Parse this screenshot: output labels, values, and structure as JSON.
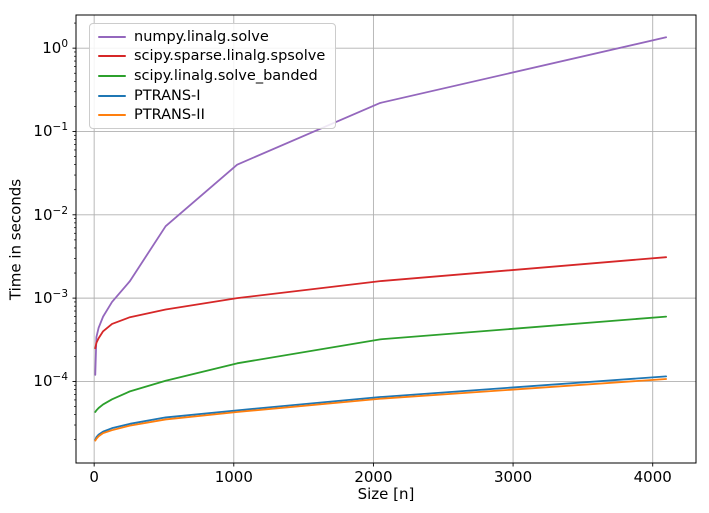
{
  "figure": {
    "background": "#ffffff"
  },
  "axes": {
    "x": {
      "label": "Size [n]",
      "scale": "linear",
      "lim": [
        -130,
        4310
      ],
      "tick_values": [
        0,
        1000,
        2000,
        3000,
        4000
      ],
      "tick_labels": [
        "0",
        "1000",
        "2000",
        "3000",
        "4000"
      ]
    },
    "y": {
      "label": "Time in seconds",
      "scale": "log",
      "lim": [
        1.05e-05,
        2.5
      ],
      "ticks": [
        {
          "base": "10",
          "exp": "0",
          "value": 1
        },
        {
          "base": "10",
          "exp": "−1",
          "value": 0.1
        },
        {
          "base": "10",
          "exp": "−2",
          "value": 0.01
        },
        {
          "base": "10",
          "exp": "−3",
          "value": 0.001
        },
        {
          "base": "10",
          "exp": "−4",
          "value": 0.0001
        }
      ]
    }
  },
  "colors": {
    "grid": "#b0b0b0",
    "spine": "#000000",
    "text": "#000000"
  },
  "chart_data": {
    "type": "line",
    "title": "",
    "xlabel": "Size [n]",
    "ylabel": "Time in seconds",
    "xscale": "linear",
    "yscale": "log",
    "xlim": [
      -130,
      4310
    ],
    "ylim": [
      1.05e-05,
      2.5
    ],
    "xticks": [
      0,
      1000,
      2000,
      3000,
      4000
    ],
    "yticks": [
      1,
      0.1,
      0.01,
      0.001,
      0.0001
    ],
    "grid": true,
    "legend_position": "upper left",
    "x": [
      8,
      16,
      32,
      64,
      128,
      256,
      512,
      1024,
      2048,
      4096
    ],
    "series": [
      {
        "name": "numpy.linalg.solve",
        "color": "#9467bd",
        "values": [
          0.00012,
          0.00034,
          0.00044,
          0.0006,
          0.0009,
          0.0016,
          0.0073,
          0.04,
          0.22,
          1.35
        ]
      },
      {
        "name": "scipy.sparse.linalg.spsolve",
        "color": "#d62728",
        "values": [
          0.00025,
          0.00029,
          0.00033,
          0.0004,
          0.00049,
          0.00059,
          0.00073,
          0.001,
          0.0016,
          0.0031
        ]
      },
      {
        "name": "scipy.linalg.solve_banded",
        "color": "#2ca02c",
        "values": [
          4.3e-05,
          4.5e-05,
          4.8e-05,
          5.3e-05,
          6.1e-05,
          7.6e-05,
          0.000102,
          0.000165,
          0.00032,
          0.0006
        ]
      },
      {
        "name": "PTRANS-I",
        "color": "#1f77b4",
        "values": [
          2e-05,
          2.15e-05,
          2.3e-05,
          2.5e-05,
          2.75e-05,
          3.1e-05,
          3.7e-05,
          4.5e-05,
          6.5e-05,
          0.000115
        ]
      },
      {
        "name": "PTRANS-II",
        "color": "#ff7f0e",
        "values": [
          1.95e-05,
          2.05e-05,
          2.2e-05,
          2.4e-05,
          2.6e-05,
          2.95e-05,
          3.5e-05,
          4.3e-05,
          6.2e-05,
          0.000107
        ]
      }
    ]
  }
}
